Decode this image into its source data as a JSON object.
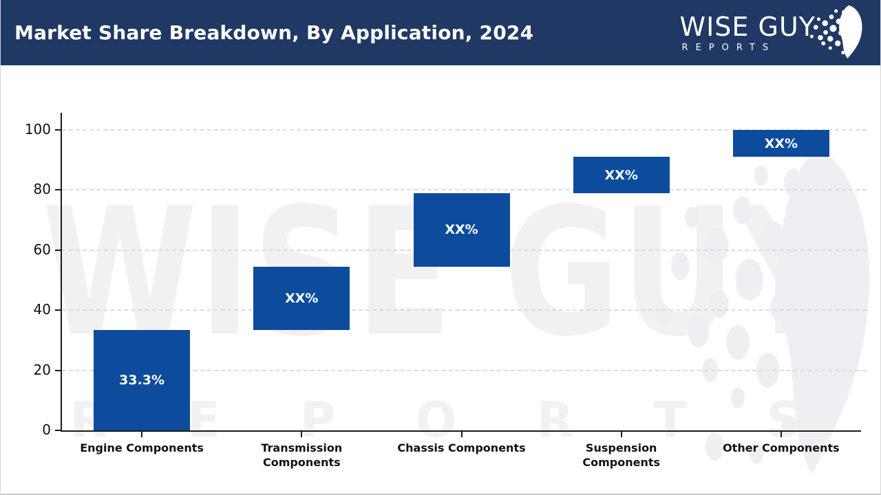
{
  "header": {
    "title": "Market Share Breakdown, By Application, 2024",
    "logo": {
      "line1": "WISE GUY",
      "line2": "REPORTS"
    }
  },
  "watermark": {
    "line1": "WISE GUY",
    "line2": "R E P O R T S"
  },
  "colors": {
    "header_bg": "#203864",
    "bar": "#0d4c9c",
    "bar_label": "#ffffff",
    "gridline": "#dcdcdc",
    "axis": "#1a1a1a",
    "watermark": "#f1f1f4"
  },
  "chart_data": {
    "type": "bar",
    "subtype": "waterfall",
    "title": "Market Share Breakdown, By Application, 2024",
    "categories": [
      "Engine Components",
      "Transmission\nComponents",
      "Chassis Components",
      "Suspension\nComponents",
      "Other Components"
    ],
    "segments": [
      {
        "start": 0,
        "end": 33.3,
        "label": "33.3%"
      },
      {
        "start": 33.3,
        "end": 54.5,
        "label": "XX%"
      },
      {
        "start": 54.5,
        "end": 79,
        "label": "XX%"
      },
      {
        "start": 79,
        "end": 91,
        "label": "XX%"
      },
      {
        "start": 91,
        "end": 100,
        "label": "XX%"
      }
    ],
    "yticks": [
      0,
      20,
      40,
      60,
      80,
      100
    ],
    "ylim": [
      0,
      106
    ],
    "xlabel": "",
    "ylabel": "",
    "grid": "horizontal-dashed",
    "legend": "none"
  }
}
